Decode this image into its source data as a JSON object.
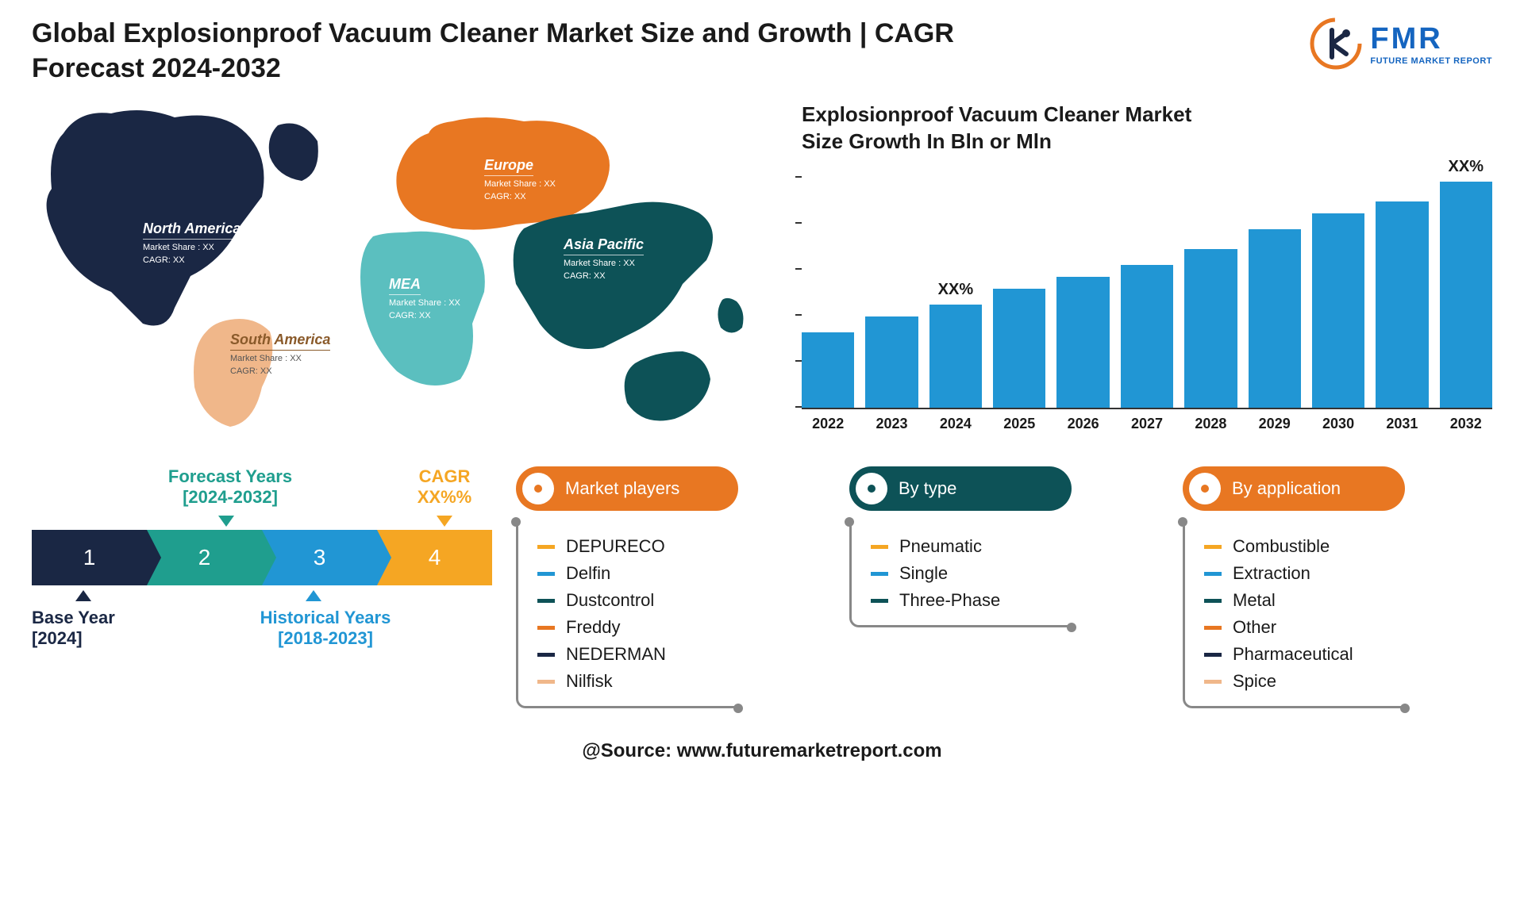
{
  "title": "Global Explosionproof Vacuum Cleaner Market Size and Growth | CAGR Forecast 2024-2032",
  "logo": {
    "fmr": "FMR",
    "sub": "FUTURE MARKET REPORT"
  },
  "colors": {
    "bar": "#2196d4",
    "orange": "#e87722",
    "tealDark": "#0d5257",
    "navy": "#1a2744",
    "tealMid": "#1f9e8e",
    "blue": "#2196d4",
    "amber": "#f5a623",
    "tealLight": "#5bbfbf",
    "blueLogo": "#1565c0"
  },
  "map": {
    "regions": {
      "na": {
        "name": "North America",
        "share": "Market Share : XX",
        "cagr": "CAGR: XX",
        "color": "#1a2744"
      },
      "sa": {
        "name": "South America",
        "share": "Market Share : XX",
        "cagr": "CAGR: XX",
        "color": "#f0b78a"
      },
      "eu": {
        "name": "Europe",
        "share": "Market Share : XX",
        "cagr": "CAGR: XX",
        "color": "#e87722"
      },
      "mea": {
        "name": "MEA",
        "share": "Market Share : XX",
        "cagr": "CAGR: XX",
        "color": "#5bbfbf"
      },
      "apac": {
        "name": "Asia Pacific",
        "share": "Market Share : XX",
        "cagr": "CAGR: XX",
        "color": "#0d5257"
      }
    }
  },
  "chart": {
    "title": "Explosionproof Vacuum Cleaner Market Size Growth In Bln or Mln",
    "years": [
      "2022",
      "2023",
      "2024",
      "2025",
      "2026",
      "2027",
      "2028",
      "2029",
      "2030",
      "2031",
      "2032"
    ],
    "heights": [
      95,
      115,
      130,
      150,
      165,
      180,
      200,
      225,
      245,
      260,
      285
    ],
    "annotations": [
      {
        "index": 2,
        "text": "XX%"
      },
      {
        "index": 10,
        "text": "XX%"
      }
    ]
  },
  "timeline": {
    "segments": [
      {
        "num": "1",
        "color": "#1a2744"
      },
      {
        "num": "2",
        "color": "#1f9e8e"
      },
      {
        "num": "3",
        "color": "#2196d4"
      },
      {
        "num": "4",
        "color": "#f5a623"
      }
    ],
    "labels": {
      "base": {
        "lines": [
          "Base Year",
          "[2024]"
        ],
        "color": "#1a2744"
      },
      "forecast": {
        "lines": [
          "Forecast Years",
          "[2024-2032]"
        ],
        "color": "#1f9e8e"
      },
      "historical": {
        "lines": [
          "Historical Years",
          "[2018-2023]"
        ],
        "color": "#2196d4"
      },
      "cagr": {
        "lines": [
          "CAGR",
          "XX%%"
        ],
        "color": "#f5a623"
      }
    }
  },
  "categories": [
    {
      "header": "Market players",
      "headerColor": "#e87722",
      "items": [
        "DEPURECO",
        "Delfin",
        "Dustcontrol",
        "Freddy",
        "NEDERMAN",
        "Nilfisk"
      ],
      "bulletColors": [
        "#f5a623",
        "#2196d4",
        "#0d5257",
        "#e87722",
        "#1a2744",
        "#f0b78a"
      ]
    },
    {
      "header": "By type",
      "headerColor": "#0d5257",
      "items": [
        "Pneumatic",
        "Single",
        "Three-Phase"
      ],
      "bulletColors": [
        "#f5a623",
        "#2196d4",
        "#0d5257"
      ]
    },
    {
      "header": "By application",
      "headerColor": "#e87722",
      "items": [
        "Combustible",
        "Extraction",
        "Metal",
        "Other",
        "Pharmaceutical",
        "Spice"
      ],
      "bulletColors": [
        "#f5a623",
        "#2196d4",
        "#0d5257",
        "#e87722",
        "#1a2744",
        "#f0b78a"
      ]
    }
  ],
  "source": "@Source: www.futuremarketreport.com"
}
